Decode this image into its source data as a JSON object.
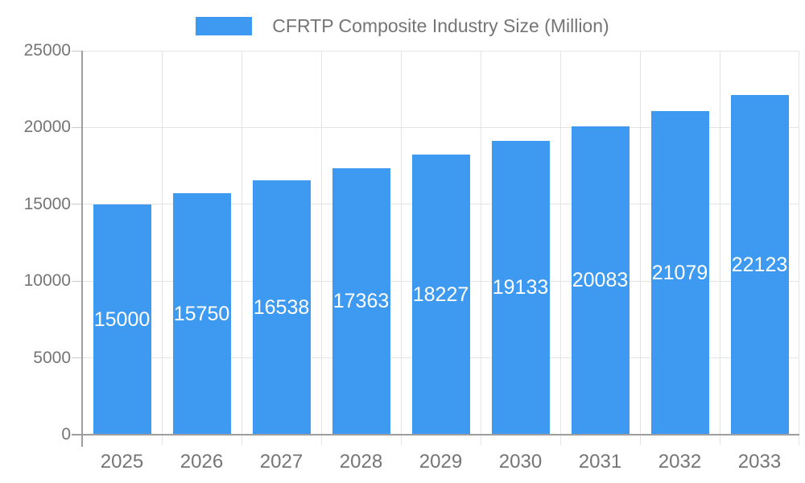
{
  "legend": {
    "label": "CFRTP Composite Industry Size (Million)"
  },
  "chart_data": {
    "type": "bar",
    "title": "",
    "categories": [
      "2025",
      "2026",
      "2027",
      "2028",
      "2029",
      "2030",
      "2031",
      "2032",
      "2033"
    ],
    "series": [
      {
        "name": "CFRTP Composite Industry Size (Million)",
        "values": [
          15000,
          15750,
          16538,
          17363,
          18227,
          19133,
          20083,
          21079,
          22123
        ]
      }
    ],
    "value_labels": [
      "15000",
      "15750",
      "16538",
      "17363",
      "18227",
      "19133",
      "20083",
      "21079",
      "22123"
    ],
    "xlabel": "",
    "ylabel": "",
    "ylim": [
      0,
      25000
    ],
    "yticks": [
      0,
      5000,
      10000,
      15000,
      20000,
      25000
    ],
    "ytick_labels": [
      "0",
      "5000",
      "10000",
      "15000",
      "20000",
      "25000"
    ],
    "grid": "on",
    "legend_position": "top-center",
    "bar_color": "#3E9AF0",
    "value_label_color": "#FFFFFF",
    "axis_text_color": "#757575",
    "gridline_color": "#E4E4E4",
    "axis_line_color": "#9E9E9E"
  }
}
